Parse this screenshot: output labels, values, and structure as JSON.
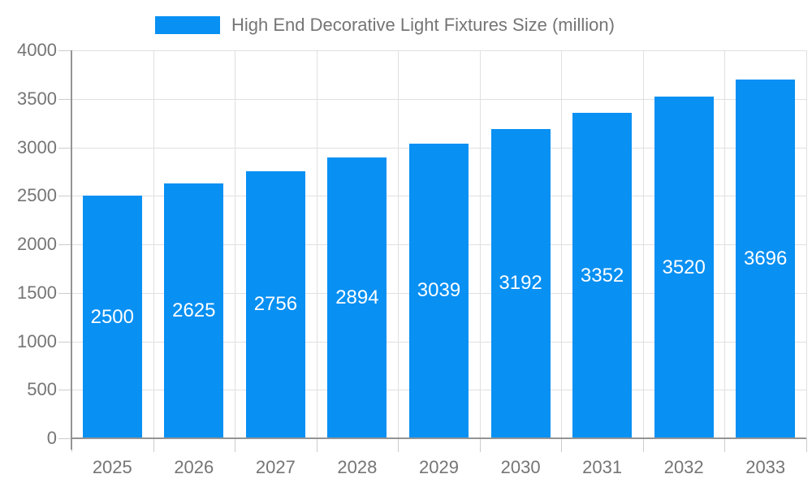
{
  "legend": {
    "label": "High End Decorative Light Fixtures Size (million)"
  },
  "colors": {
    "bar": "#0890f3",
    "grid": "#e0e0e0",
    "tick": "#cccccc",
    "axis": "#949494",
    "axis_label": "#757575",
    "value_label": "#ffffff",
    "background": "#ffffff"
  },
  "chart_data": {
    "type": "bar",
    "title": "High End Decorative Light Fixtures Size (million)",
    "categories": [
      "2025",
      "2026",
      "2027",
      "2028",
      "2029",
      "2030",
      "2031",
      "2032",
      "2033"
    ],
    "values": [
      2500,
      2625,
      2756,
      2894,
      3039,
      3192,
      3352,
      3520,
      3696
    ],
    "series_name": "High End Decorative Light Fixtures Size (million)",
    "xlabel": "",
    "ylabel": "",
    "ylim": [
      0,
      4000
    ],
    "yticks": [
      0,
      500,
      1000,
      1500,
      2000,
      2500,
      3000,
      3500,
      4000
    ],
    "grid": true,
    "legend_position": "top",
    "value_label_position": "inside-center"
  }
}
